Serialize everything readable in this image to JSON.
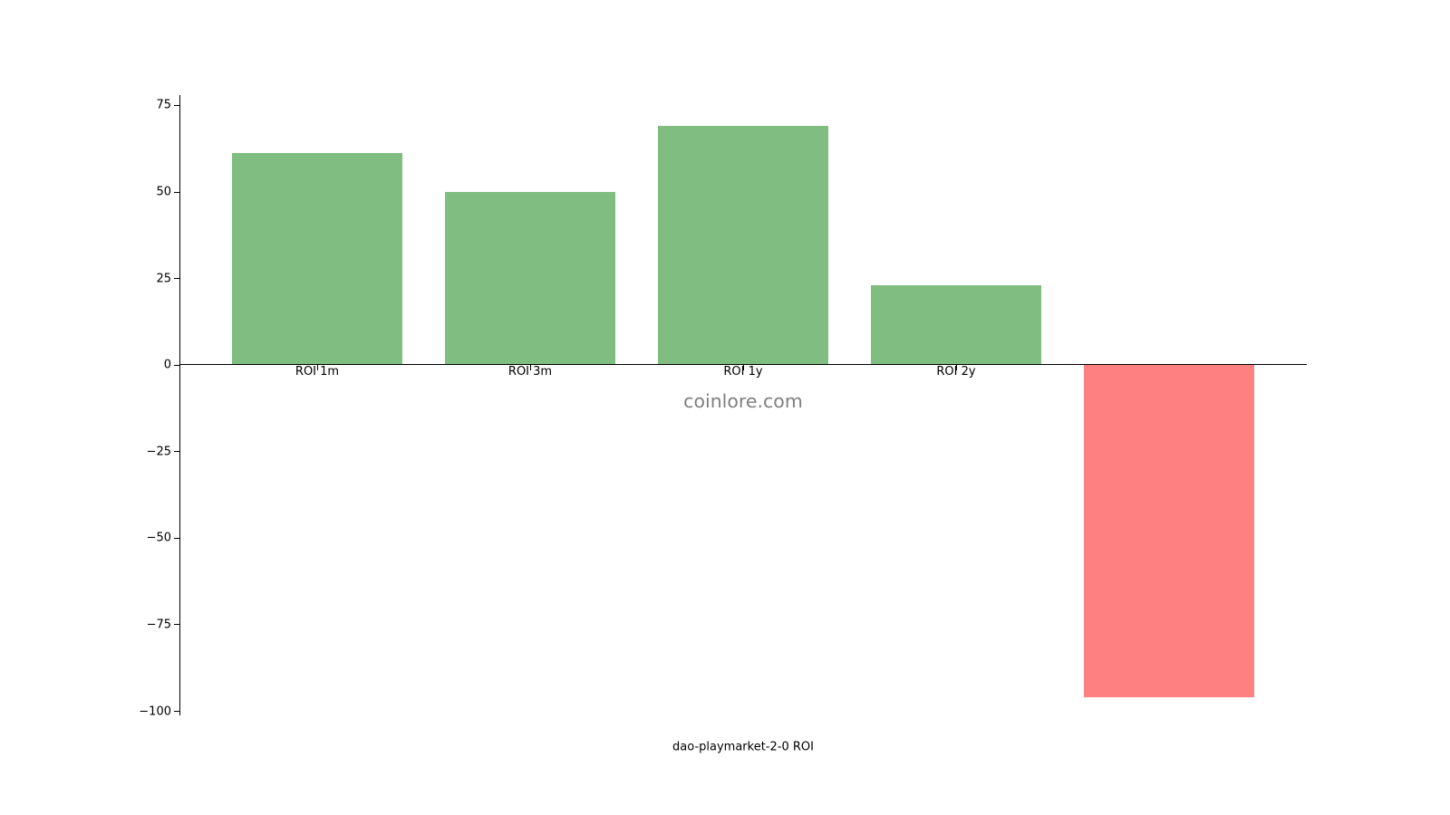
{
  "watermark": {
    "text": "coinlore.com",
    "color": "#7f7f7f"
  },
  "figure_title": "dao-playmarket-2-0 ROI",
  "chart_data": {
    "type": "bar",
    "title": "dao-playmarket-2-0 ROI",
    "xlabel": "",
    "ylabel": "",
    "categories": [
      "ROI 1m",
      "ROI 3m",
      "ROI 1y",
      "ROI 2y",
      ""
    ],
    "values": [
      61,
      50,
      69,
      23,
      -96
    ],
    "bar_colors": [
      "#80bd80",
      "#80bd80",
      "#80bd80",
      "#80bd80",
      "#ff8080"
    ],
    "positive_color": "#80bd80",
    "negative_color": "#ff8080",
    "y_ticks": [
      75,
      50,
      25,
      0,
      -25,
      -50,
      -75,
      -100
    ],
    "y_tick_labels": [
      "75",
      "50",
      "25",
      "0",
      "−25",
      "−50",
      "−75",
      "−100"
    ],
    "ylim": [
      -100,
      78
    ],
    "grid": false,
    "legend": null,
    "axis_color": "#000000",
    "watermark": "coinlore.com",
    "notes": "fifth bar has no visible x tick label; x tick marks overlap category labels"
  }
}
